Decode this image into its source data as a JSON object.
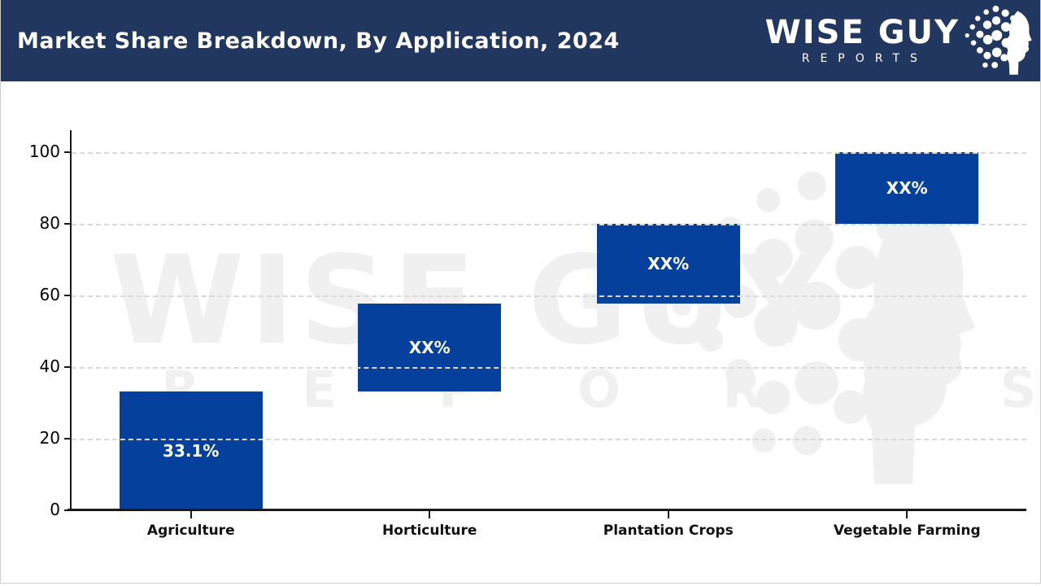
{
  "header": {
    "title": "Market Share Breakdown, By Application, 2024",
    "logo": {
      "line1": "WISE GUY",
      "line2": "REPORTS"
    }
  },
  "watermark": {
    "line1": "WISE GUY",
    "line2": "R E P O R T S"
  },
  "chart_data": {
    "type": "bar",
    "subtype": "waterfall",
    "title": "Market Share Breakdown, By Application, 2024",
    "categories": [
      "Agriculture",
      "Horticulture",
      "Plantation Crops",
      "Vegetable Farming"
    ],
    "series": [
      {
        "name": "Market Share",
        "segments": [
          {
            "category": "Agriculture",
            "start": 0,
            "end": 33.1,
            "label": "33.1%"
          },
          {
            "category": "Horticulture",
            "start": 33.1,
            "end": 57.7,
            "label": "XX%"
          },
          {
            "category": "Plantation Crops",
            "start": 57.7,
            "end": 80.0,
            "label": "XX%"
          },
          {
            "category": "Vegetable Farming",
            "start": 80.0,
            "end": 100.0,
            "label": "XX%"
          }
        ]
      }
    ],
    "xlabel": "",
    "ylabel": "",
    "yticks": [
      0,
      20,
      40,
      60,
      80,
      100
    ],
    "ylim": [
      0,
      106
    ],
    "grid": "horizontal-dashed-over-bars",
    "legend": "none",
    "colors": {
      "bar": "#05419c",
      "bar_label": "#ffffff",
      "header_bg": "#223760",
      "axis": "#1a1a1a",
      "gridline": "#d9d9d9",
      "watermark": "#f0f0f1"
    }
  }
}
